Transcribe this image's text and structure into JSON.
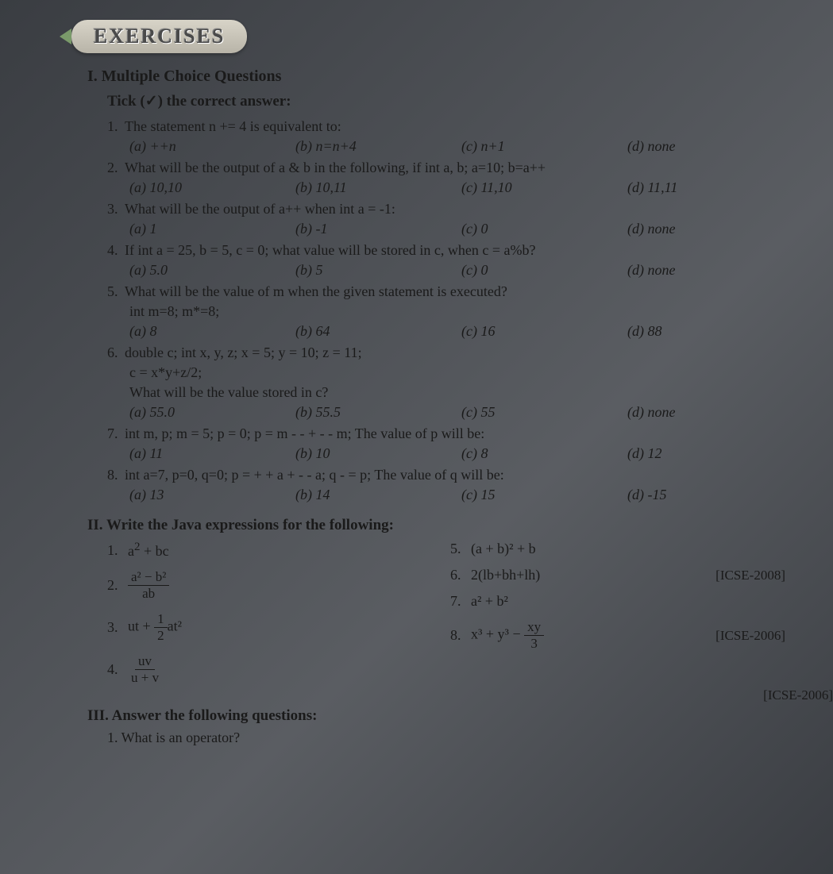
{
  "header": "EXERCISES",
  "sectionI": {
    "title": "I. Multiple Choice Questions",
    "subtitle": "Tick (✓) the correct answer:",
    "questions": [
      {
        "n": "1.",
        "text": "The statement n += 4 is equivalent to:",
        "opts": {
          "a": "++n",
          "b": "n=n+4",
          "c": "n+1",
          "d": "none"
        }
      },
      {
        "n": "2.",
        "text": "What will be the output of a & b in the following, if int a, b; a=10; b=a++",
        "opts": {
          "a": "10,10",
          "b": "10,11",
          "c": "11,10",
          "d": "11,11"
        }
      },
      {
        "n": "3.",
        "text": "What will be the output of a++ when int a = -1:",
        "opts": {
          "a": "1",
          "b": "-1",
          "c": "0",
          "d": "none"
        }
      },
      {
        "n": "4.",
        "text": "If int a = 25, b = 5, c = 0; what value will be stored in c, when c = a%b?",
        "opts": {
          "a": "5.0",
          "b": "5",
          "c": "0",
          "d": "none"
        }
      },
      {
        "n": "5.",
        "text": "What will be the value of m when the given statement is executed?",
        "sub": "int m=8; m*=8;",
        "opts": {
          "a": "8",
          "b": "64",
          "c": "16",
          "d": "88"
        }
      },
      {
        "n": "6.",
        "text": "double c; int x, y, z; x = 5; y = 10; z = 11;",
        "sub": "c = x*y+z/2;",
        "sub2": "What will be the value stored in c?",
        "opts": {
          "a": "55.0",
          "b": "55.5",
          "c": "55",
          "d": "none"
        }
      },
      {
        "n": "7.",
        "text": "int m, p; m = 5; p = 0; p = m - - + - - m; The value of p will be:",
        "opts": {
          "a": "11",
          "b": "10",
          "c": "8",
          "d": "12"
        }
      },
      {
        "n": "8.",
        "text": "int a=7, p=0, q=0; p = + + a + - - a; q - = p; The value of q will be:",
        "opts": {
          "a": "13",
          "b": "14",
          "c": "15",
          "d": "-15"
        }
      }
    ]
  },
  "sectionII": {
    "title": "II. Write the Java expressions for the following:",
    "leftItems": [
      {
        "n": "1.",
        "html": "a<sup>2</sup> + bc"
      },
      {
        "n": "2.",
        "frac": {
          "num": "a² − b²",
          "den": "ab"
        }
      },
      {
        "n": "3.",
        "html": "ut + ",
        "frac": {
          "num": "1",
          "den": "2"
        },
        "after": "at²"
      },
      {
        "n": "4.",
        "frac": {
          "num": "uv",
          "den": "u + v"
        }
      }
    ],
    "rightItems": [
      {
        "n": "5.",
        "html": "(a + b)² + b"
      },
      {
        "n": "6.",
        "html": "2(lb+bh+lh)",
        "tag": "[ICSE-2008]"
      },
      {
        "n": "7.",
        "html": "a² + b²"
      },
      {
        "n": "8.",
        "html": "x³ + y³ − ",
        "frac": {
          "num": "xy",
          "den": "3"
        },
        "tag": "[ICSE-2006]"
      }
    ]
  },
  "sectionIII": {
    "title": "III. Answer the following questions:",
    "tag": "[ICSE-2006]",
    "q1": "1. What is an operator?"
  }
}
